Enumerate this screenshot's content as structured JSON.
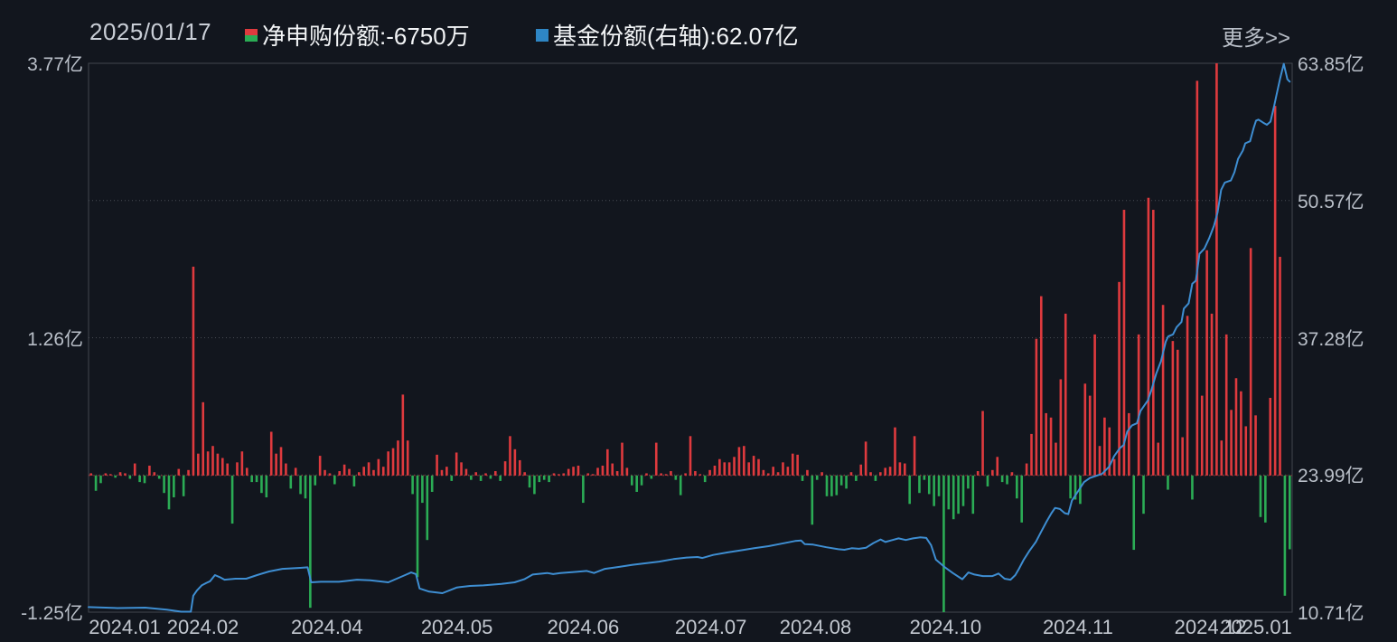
{
  "header": {
    "date": "2025/01/17",
    "legend_bar_label": "净申购份额:-6750万",
    "legend_line_label": "基金份额(右轴):62.07亿",
    "more_label": "更多>>"
  },
  "colors": {
    "background": "#12161e",
    "plot_border": "#41464e",
    "grid_dotted": "#474c54",
    "bar_positive": "#df3a3e",
    "bar_negative": "#2bac55",
    "line": "#3e8ed2",
    "zero_line": "#c23a3a",
    "legend_line_swatch": "#2e86c5",
    "text_primary": "#f2f4f6",
    "text_secondary": "#c9ced6",
    "axis_text": "#b9bfc8"
  },
  "chart_data": {
    "type": "combo-bar-line",
    "title": "",
    "grid": "horizontal dotted lines at right-axis tick levels",
    "legend_position": "top",
    "y_axis_left": {
      "name": "净申购份额",
      "unit": "亿",
      "max": 3.77,
      "min": -1.25,
      "labels": [
        "3.77亿",
        "1.26亿",
        "-1.25亿"
      ],
      "label_values": [
        3.77,
        1.26,
        -1.25
      ]
    },
    "y_axis_right": {
      "name": "基金份额",
      "unit": "亿",
      "max": 63.85,
      "min": 10.71,
      "labels": [
        "63.85亿",
        "50.57亿",
        "37.28亿",
        "23.99亿",
        "10.71亿"
      ],
      "label_values": [
        63.85,
        50.57,
        37.28,
        23.99,
        10.71
      ],
      "grid_values": [
        50.57,
        37.28,
        23.99
      ]
    },
    "x_axis": {
      "labels": [
        "2024.01",
        "2024.02",
        "2024.04",
        "2024.05",
        "2024.06",
        "2024.07",
        "2024.08",
        "2024.10",
        "2024.11",
        "2024.12",
        "2025.01"
      ],
      "positions": [
        0.03,
        0.095,
        0.198,
        0.306,
        0.411,
        0.517,
        0.604,
        0.712,
        0.822,
        0.932,
        0.97
      ]
    },
    "series": [
      {
        "name": "净申购份额",
        "type": "bar",
        "axis": "left",
        "unit": "亿",
        "latest_label": "-6750万",
        "latest_value": -0.675,
        "values": [
          0.02,
          -0.14,
          -0.07,
          0.02,
          0.01,
          -0.02,
          0.03,
          0.02,
          -0.03,
          0.11,
          -0.06,
          -0.07,
          0.09,
          0.03,
          -0.03,
          -0.16,
          -0.31,
          -0.2,
          0.06,
          -0.19,
          0.05,
          1.91,
          0.2,
          0.67,
          0.22,
          0.27,
          0.2,
          0.16,
          0.11,
          -0.44,
          0.12,
          0.22,
          0.07,
          -0.06,
          -0.06,
          -0.16,
          -0.2,
          0.4,
          0.2,
          0.26,
          0.11,
          -0.12,
          0.07,
          -0.17,
          -0.21,
          -1.21,
          -0.09,
          0.18,
          0.05,
          0.02,
          -0.08,
          0.04,
          0.1,
          0.06,
          -0.1,
          0.03,
          0.08,
          0.12,
          0.05,
          0.15,
          0.08,
          0.22,
          0.25,
          0.32,
          0.74,
          0.32,
          -0.17,
          -0.93,
          -0.25,
          -0.59,
          -0.15,
          0.19,
          0.05,
          0.08,
          -0.05,
          0.21,
          0.12,
          0.06,
          -0.04,
          0.03,
          -0.05,
          0.02,
          -0.03,
          0.04,
          -0.05,
          0.13,
          0.36,
          0.24,
          0.14,
          0.03,
          -0.11,
          -0.17,
          -0.06,
          -0.04,
          -0.06,
          0.02,
          0.01,
          0.02,
          0.06,
          0.08,
          0.09,
          -0.25,
          0.02,
          0.01,
          0.07,
          0.09,
          0.24,
          0.11,
          0.04,
          0.3,
          0.07,
          -0.09,
          -0.15,
          -0.09,
          0.02,
          -0.03,
          0.3,
          0.02,
          0.01,
          0.04,
          -0.04,
          -0.18,
          0.02,
          0.36,
          0.04,
          0.01,
          -0.06,
          0.05,
          0.09,
          0.15,
          0.12,
          0.12,
          0.17,
          0.26,
          0.27,
          0.12,
          0.18,
          0.15,
          0.05,
          0.02,
          0.08,
          0.03,
          0.12,
          0.08,
          0.2,
          0.19,
          -0.05,
          0.05,
          -0.45,
          -0.04,
          0.03,
          -0.19,
          -0.19,
          -0.18,
          -0.09,
          -0.12,
          0.03,
          -0.05,
          0.1,
          0.31,
          0.03,
          -0.05,
          0.03,
          0.07,
          0.08,
          0.44,
          0.12,
          0.11,
          -0.26,
          0.36,
          -0.16,
          -0.04,
          -0.17,
          -0.28,
          -0.19,
          -1.25,
          -0.31,
          -0.4,
          -0.35,
          -0.28,
          -0.12,
          -0.35,
          0.04,
          0.59,
          -0.1,
          0.05,
          0.17,
          -0.06,
          -0.08,
          0.03,
          -0.21,
          -0.43,
          0.11,
          0.38,
          1.25,
          1.64,
          0.57,
          0.53,
          0.3,
          0.88,
          1.48,
          -0.21,
          -0.22,
          -0.26,
          0.84,
          0.73,
          1.29,
          0.27,
          0.53,
          0.44,
          0.15,
          1.77,
          2.43,
          0.57,
          -0.68,
          1.29,
          -0.35,
          2.54,
          2.43,
          0.3,
          1.56,
          -0.13,
          1.23,
          1.15,
          0.35,
          1.46,
          -0.22,
          3.61,
          0.73,
          2.06,
          1.48,
          3.77,
          0.32,
          1.29,
          0.6,
          0.89,
          0.77,
          0.45,
          2.08,
          0.55,
          -0.38,
          -0.43,
          0.71,
          3.38,
          2.0,
          -1.1,
          -0.675
        ]
      },
      {
        "name": "基金份额(右轴)",
        "type": "line",
        "axis": "right",
        "unit": "亿",
        "latest_label": "62.07亿",
        "latest_value": 62.07,
        "points": [
          [
            0.0,
            11.2
          ],
          [
            0.024,
            11.1
          ],
          [
            0.047,
            11.15
          ],
          [
            0.065,
            10.95
          ],
          [
            0.077,
            10.75
          ],
          [
            0.085,
            10.75
          ],
          [
            0.087,
            12.3
          ],
          [
            0.09,
            12.8
          ],
          [
            0.094,
            13.3
          ],
          [
            0.098,
            13.55
          ],
          [
            0.101,
            13.7
          ],
          [
            0.105,
            14.3
          ],
          [
            0.109,
            14.1
          ],
          [
            0.113,
            13.85
          ],
          [
            0.122,
            13.95
          ],
          [
            0.131,
            13.95
          ],
          [
            0.14,
            14.3
          ],
          [
            0.15,
            14.65
          ],
          [
            0.161,
            14.9
          ],
          [
            0.176,
            15.0
          ],
          [
            0.182,
            15.05
          ],
          [
            0.185,
            13.6
          ],
          [
            0.193,
            13.65
          ],
          [
            0.208,
            13.65
          ],
          [
            0.223,
            13.85
          ],
          [
            0.234,
            13.8
          ],
          [
            0.249,
            13.6
          ],
          [
            0.263,
            14.3
          ],
          [
            0.268,
            14.55
          ],
          [
            0.272,
            14.4
          ],
          [
            0.275,
            13.0
          ],
          [
            0.283,
            12.7
          ],
          [
            0.294,
            12.55
          ],
          [
            0.306,
            13.1
          ],
          [
            0.317,
            13.25
          ],
          [
            0.328,
            13.3
          ],
          [
            0.343,
            13.45
          ],
          [
            0.354,
            13.6
          ],
          [
            0.362,
            13.9
          ],
          [
            0.369,
            14.35
          ],
          [
            0.381,
            14.5
          ],
          [
            0.386,
            14.4
          ],
          [
            0.392,
            14.5
          ],
          [
            0.403,
            14.6
          ],
          [
            0.414,
            14.7
          ],
          [
            0.42,
            14.5
          ],
          [
            0.429,
            14.9
          ],
          [
            0.441,
            15.1
          ],
          [
            0.452,
            15.3
          ],
          [
            0.463,
            15.45
          ],
          [
            0.474,
            15.6
          ],
          [
            0.486,
            15.85
          ],
          [
            0.497,
            16.0
          ],
          [
            0.506,
            16.05
          ],
          [
            0.51,
            15.95
          ],
          [
            0.519,
            16.25
          ],
          [
            0.531,
            16.5
          ],
          [
            0.542,
            16.7
          ],
          [
            0.553,
            16.9
          ],
          [
            0.565,
            17.1
          ],
          [
            0.576,
            17.35
          ],
          [
            0.587,
            17.6
          ],
          [
            0.592,
            17.65
          ],
          [
            0.595,
            17.3
          ],
          [
            0.602,
            17.25
          ],
          [
            0.613,
            17.0
          ],
          [
            0.623,
            16.8
          ],
          [
            0.628,
            16.75
          ],
          [
            0.634,
            16.9
          ],
          [
            0.64,
            16.85
          ],
          [
            0.646,
            16.95
          ],
          [
            0.652,
            17.4
          ],
          [
            0.658,
            17.75
          ],
          [
            0.662,
            17.5
          ],
          [
            0.668,
            17.7
          ],
          [
            0.673,
            17.85
          ],
          [
            0.679,
            17.7
          ],
          [
            0.685,
            17.85
          ],
          [
            0.691,
            17.95
          ],
          [
            0.696,
            17.9
          ],
          [
            0.7,
            17.2
          ],
          [
            0.704,
            15.8
          ],
          [
            0.711,
            15.1
          ],
          [
            0.718,
            14.5
          ],
          [
            0.726,
            13.9
          ],
          [
            0.731,
            14.55
          ],
          [
            0.736,
            14.35
          ],
          [
            0.743,
            14.2
          ],
          [
            0.751,
            14.2
          ],
          [
            0.756,
            14.45
          ],
          [
            0.761,
            13.95
          ],
          [
            0.766,
            13.85
          ],
          [
            0.77,
            14.3
          ],
          [
            0.773,
            14.9
          ],
          [
            0.777,
            15.8
          ],
          [
            0.782,
            16.7
          ],
          [
            0.787,
            17.5
          ],
          [
            0.791,
            18.4
          ],
          [
            0.796,
            19.5
          ],
          [
            0.8,
            20.3
          ],
          [
            0.803,
            20.8
          ],
          [
            0.807,
            20.7
          ],
          [
            0.811,
            20.3
          ],
          [
            0.814,
            20.2
          ],
          [
            0.817,
            21.5
          ],
          [
            0.822,
            22.4
          ],
          [
            0.827,
            23.3
          ],
          [
            0.832,
            23.7
          ],
          [
            0.837,
            23.9
          ],
          [
            0.842,
            24.1
          ],
          [
            0.848,
            24.8
          ],
          [
            0.852,
            25.8
          ],
          [
            0.855,
            26.3
          ],
          [
            0.857,
            26.6
          ],
          [
            0.86,
            26.9
          ],
          [
            0.863,
            28.2
          ],
          [
            0.867,
            28.8
          ],
          [
            0.871,
            29.0
          ],
          [
            0.874,
            30.2
          ],
          [
            0.88,
            31.2
          ],
          [
            0.883,
            32.2
          ],
          [
            0.887,
            33.8
          ],
          [
            0.891,
            35.0
          ],
          [
            0.895,
            36.9
          ],
          [
            0.897,
            37.4
          ],
          [
            0.901,
            37.6
          ],
          [
            0.904,
            38.3
          ],
          [
            0.908,
            38.8
          ],
          [
            0.91,
            40.1
          ],
          [
            0.914,
            40.6
          ],
          [
            0.917,
            42.5
          ],
          [
            0.92,
            42.8
          ],
          [
            0.923,
            45.4
          ],
          [
            0.927,
            45.9
          ],
          [
            0.931,
            46.9
          ],
          [
            0.935,
            48.1
          ],
          [
            0.938,
            49.4
          ],
          [
            0.941,
            51.6
          ],
          [
            0.944,
            52.3
          ],
          [
            0.949,
            52.5
          ],
          [
            0.952,
            53.3
          ],
          [
            0.955,
            54.6
          ],
          [
            0.959,
            55.4
          ],
          [
            0.961,
            56.1
          ],
          [
            0.965,
            56.3
          ],
          [
            0.968,
            57.6
          ],
          [
            0.97,
            58.3
          ],
          [
            0.972,
            58.4
          ],
          [
            0.976,
            58.1
          ],
          [
            0.979,
            57.9
          ],
          [
            0.982,
            58.2
          ],
          [
            0.985,
            59.7
          ],
          [
            0.987,
            60.8
          ],
          [
            0.99,
            62.4
          ],
          [
            0.993,
            63.8
          ],
          [
            0.996,
            62.3
          ],
          [
            0.998,
            62.07
          ]
        ]
      }
    ]
  }
}
